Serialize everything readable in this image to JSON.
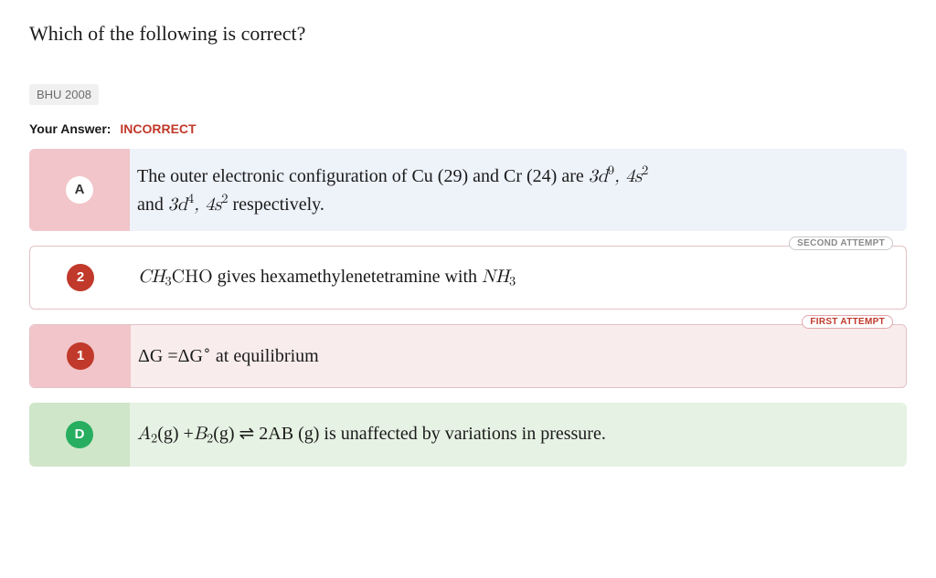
{
  "question": "Which of the following is correct?",
  "exam_tag": "BHU 2008",
  "your_answer": {
    "label": "Your Answer:",
    "status": "INCORRECT",
    "status_color": "#c0392b"
  },
  "options": {
    "A": {
      "letter": "A",
      "bg": "#eef2f9",
      "left_bg": "#f1c5c9",
      "badge_bg": "#ffffff",
      "badge_fg": "#333333",
      "border": "none",
      "text_pre": "The outer electronic configuration of ",
      "cu": "Cu (29)",
      "and1": " and ",
      "cr": "Cr (24)",
      "are": " are ",
      "cfg1_base": "3d",
      "cfg1_sup": "9",
      "cfg1b_base": ", 4s",
      "cfg1b_sup": "2",
      "line2_pre": "and ",
      "cfg2_base": "3d",
      "cfg2_sup": "4",
      "cfg2b_base": ", 4s",
      "cfg2b_sup": "2",
      "line2_post": " respectively."
    },
    "B": {
      "letter": "2",
      "bg": "#ffffff",
      "left_bg": "#ffffff",
      "badge_bg": "#c0392b",
      "badge_fg": "#ffffff",
      "border": "1px solid #e3c1c4",
      "attempt": "SECOND ATTEMPT",
      "attempt_color": "#8a8a8a",
      "attempt_border": "1px solid #c9c9c9",
      "f1_a": "C",
      "f1_b": "H",
      "f1_sub": "3",
      "f1_c": "CHO",
      "mid": " gives hexamethylenetetramine with ",
      "f2_a": "N",
      "f2_b": "H",
      "f2_sub": "3"
    },
    "C": {
      "letter": "1",
      "bg": "#f8eced",
      "left_bg": "#f1c5c9",
      "badge_bg": "#c0392b",
      "badge_fg": "#ffffff",
      "border": "1px solid #e3c1c4",
      "attempt": "FIRST ATTEMPT",
      "attempt_color": "#c0392b",
      "attempt_border": "1px solid #e3a6ab",
      "dg1": "ΔG ",
      "eq": "=",
      "dg2": "ΔG",
      "deg": "∘",
      "post": " at equilibrium"
    },
    "D": {
      "letter": "D",
      "bg": "#e6f2e3",
      "left_bg": "#cfe6c9",
      "badge_bg": "#27ae60",
      "badge_fg": "#ffffff",
      "border": "none",
      "a": "A",
      "a_sub": "2",
      "g1": "(g) ",
      "plus": "+",
      "b": "B",
      "b_sub": "2",
      "g2": "(g) ",
      "arr": "⇌ ",
      "two": "2",
      "ab": "AB ",
      "g3": "(g)",
      "post": " is unaffected by variations in pressure."
    }
  }
}
